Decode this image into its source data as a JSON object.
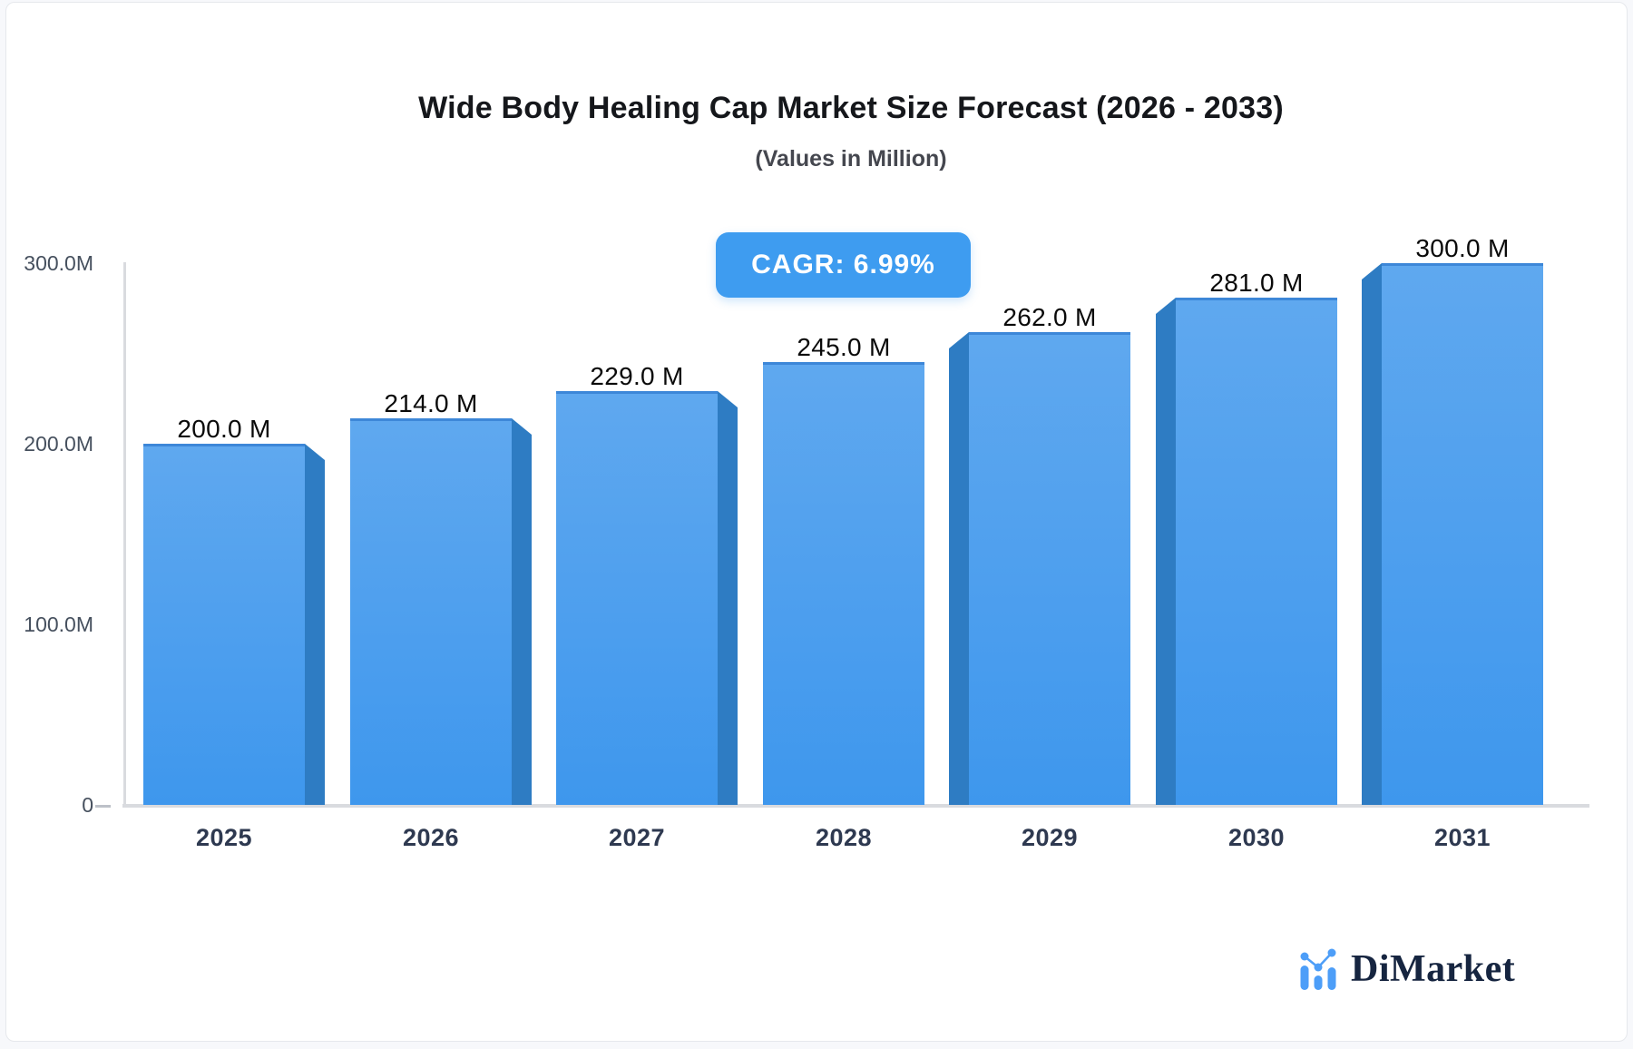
{
  "chart_data": {
    "type": "bar",
    "title": "Wide Body Healing Cap Market Size Forecast (2026 - 2033)",
    "subtitle": "(Values in Million)",
    "badge_label": "CAGR: 6.99%",
    "categories": [
      "2025",
      "2026",
      "2027",
      "2028",
      "2029",
      "2030",
      "2031"
    ],
    "values": [
      200.0,
      214.0,
      229.0,
      245.0,
      262.0,
      281.0,
      300.0
    ],
    "value_labels": [
      "200.0 M",
      "214.0 M",
      "229.0 M",
      "245.0 M",
      "262.0 M",
      "281.0 M",
      "300.0 M"
    ],
    "unit": "Million",
    "ylim": [
      0,
      300
    ],
    "y_ticks": [
      {
        "value": 300,
        "label": "300.0M"
      },
      {
        "value": 200,
        "label": "200.0M"
      },
      {
        "value": 100,
        "label": "100.0M"
      },
      {
        "value": 0,
        "label": "0"
      }
    ],
    "grid": false,
    "legend": null,
    "colors": {
      "bar_face_top": "#5FA8EF",
      "bar_face_bottom": "#3E97ED",
      "bar_side": "#2E7CC3",
      "bar_top_edge": "#3D87D8",
      "axis_line": "#D9DBDF",
      "badge_bg": "#3E9CF0"
    }
  },
  "branding": {
    "logo_text": "DiMarket"
  }
}
